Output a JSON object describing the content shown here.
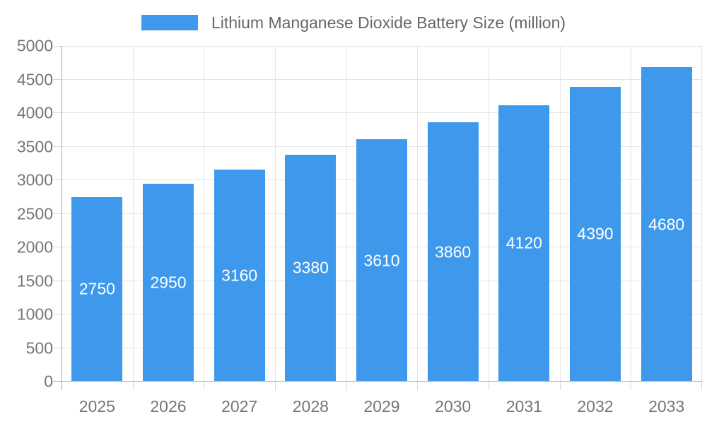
{
  "legend": {
    "label": "Lithium Manganese Dioxide Battery Size (million)"
  },
  "colors": {
    "bar": "#3E99ED",
    "gridline": "#E4E4E4",
    "tick_mark": "#D9D9D9",
    "axis_line": "#ABABAB",
    "tick_label": "#757575",
    "legend_text": "#666666",
    "bar_label": "#FFFFFF",
    "background": "#FFFFFF"
  },
  "chart_data": {
    "type": "bar",
    "title": "",
    "categories": [
      "2025",
      "2026",
      "2027",
      "2028",
      "2029",
      "2030",
      "2031",
      "2032",
      "2033"
    ],
    "series": [
      {
        "name": "Lithium Manganese Dioxide Battery Size (million)",
        "values": [
          2750,
          2950,
          3160,
          3380,
          3610,
          3860,
          4120,
          4390,
          4680
        ]
      }
    ],
    "xlabel": "",
    "ylabel": "",
    "ylim": [
      0,
      5000
    ],
    "yticks": [
      0,
      500,
      1000,
      1500,
      2000,
      2500,
      3000,
      3500,
      4000,
      4500,
      5000
    ],
    "grid": true,
    "legend_position": "top",
    "bar_label_position": "inside-center"
  }
}
